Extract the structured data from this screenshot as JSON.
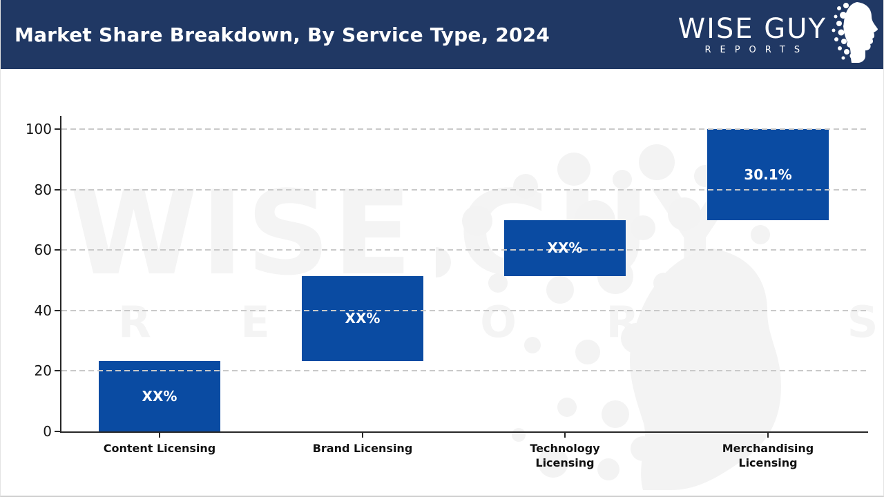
{
  "header": {
    "title": "Market Share Breakdown, By Service Type, 2024",
    "logo": {
      "line1": "WISE GUY",
      "line2": "REPORTS"
    }
  },
  "watermark": {
    "line1": "WISE GUY",
    "line2": "R E P O R T S"
  },
  "chart_data": {
    "type": "bar",
    "subtype": "waterfall",
    "title": "Market Share Breakdown, By Service Type, 2024",
    "xlabel": "",
    "ylabel": "",
    "ylim": [
      0,
      100
    ],
    "yticks": [
      0,
      20,
      40,
      60,
      80,
      100
    ],
    "grid": "horizontal dashed",
    "legend": "none",
    "bar_color": "#0a4ba2",
    "bar_label_color": "#ffffff",
    "categories": [
      "Content Licensing",
      "Brand Licensing",
      "Technology Licensing",
      "Merchandising Licensing"
    ],
    "category_label_lines": [
      [
        "Content Licensing"
      ],
      [
        "Brand Licensing"
      ],
      [
        "Technology",
        "Licensing"
      ],
      [
        "Merchandising",
        "Licensing"
      ]
    ],
    "segments": [
      {
        "label": "Content Licensing",
        "start": 0,
        "end": 23.3,
        "value": 23.3,
        "value_label": "XX%"
      },
      {
        "label": "Brand Licensing",
        "start": 23.3,
        "end": 51.4,
        "value": 28.1,
        "value_label": "XX%"
      },
      {
        "label": "Technology Licensing",
        "start": 51.4,
        "end": 69.9,
        "value": 18.5,
        "value_label": "XX%"
      },
      {
        "label": "Merchandising Licensing",
        "start": 69.9,
        "end": 100,
        "value": 30.1,
        "value_label": "30.1%"
      }
    ]
  },
  "colors": {
    "header_bg": "#203864",
    "bar": "#0a4ba2",
    "axis": "#262626",
    "gridline": "#c9c9c9",
    "watermark": "#f4f4f4",
    "text": "#111111"
  }
}
